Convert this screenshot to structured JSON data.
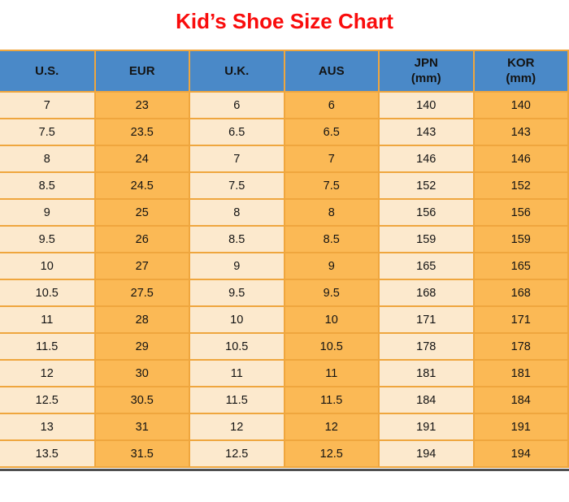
{
  "title": "Kid’s Shoe Size Chart",
  "colors": {
    "title_red": "#F90C0C",
    "header_blue": "#4A89C8",
    "col_light": "#FCE9CD",
    "col_orange": "#FBB955",
    "grid_gold": "#EFA63E",
    "bottom_bar": "#4F4F4F",
    "text_dark": "#131313"
  },
  "table": {
    "headers": [
      {
        "label": "U.S.",
        "sub": ""
      },
      {
        "label": "EUR",
        "sub": ""
      },
      {
        "label": "U.K.",
        "sub": ""
      },
      {
        "label": "AUS",
        "sub": ""
      },
      {
        "label": "JPN",
        "sub": "(mm)"
      },
      {
        "label": "KOR",
        "sub": "(mm)"
      }
    ]
  },
  "chart_data": {
    "type": "table",
    "title": "Kid’s Shoe Size Chart",
    "columns": [
      "U.S.",
      "EUR",
      "U.K.",
      "AUS",
      "JPN (mm)",
      "KOR (mm)"
    ],
    "rows": [
      [
        "7",
        "23",
        "6",
        "6",
        "140",
        "140"
      ],
      [
        "7.5",
        "23.5",
        "6.5",
        "6.5",
        "143",
        "143"
      ],
      [
        "8",
        "24",
        "7",
        "7",
        "146",
        "146"
      ],
      [
        "8.5",
        "24.5",
        "7.5",
        "7.5",
        "152",
        "152"
      ],
      [
        "9",
        "25",
        "8",
        "8",
        "156",
        "156"
      ],
      [
        "9.5",
        "26",
        "8.5",
        "8.5",
        "159",
        "159"
      ],
      [
        "10",
        "27",
        "9",
        "9",
        "165",
        "165"
      ],
      [
        "10.5",
        "27.5",
        "9.5",
        "9.5",
        "168",
        "168"
      ],
      [
        "11",
        "28",
        "10",
        "10",
        "171",
        "171"
      ],
      [
        "11.5",
        "29",
        "10.5",
        "10.5",
        "178",
        "178"
      ],
      [
        "12",
        "30",
        "11",
        "11",
        "181",
        "181"
      ],
      [
        "12.5",
        "30.5",
        "11.5",
        "11.5",
        "184",
        "184"
      ],
      [
        "13",
        "31",
        "12",
        "12",
        "191",
        "191"
      ],
      [
        "13.5",
        "31.5",
        "12.5",
        "12.5",
        "194",
        "194"
      ]
    ]
  }
}
